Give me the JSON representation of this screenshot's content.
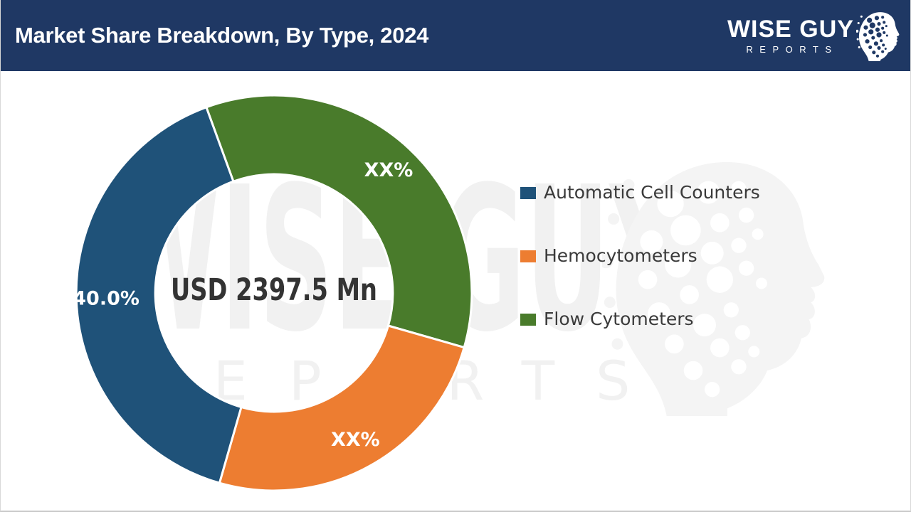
{
  "header": {
    "title": "Market Share Breakdown, By Type, 2024",
    "logo": {
      "line1": "WISE GUY",
      "line2": "REPORTS"
    }
  },
  "watermark": {
    "line1": "WISE GUY",
    "line2": "REPORTS"
  },
  "chart_data": {
    "type": "pie",
    "subtype": "donut",
    "title": "Market Share Breakdown, By Type, 2024",
    "center_label": "USD 2397.5 Mn",
    "unit": "%",
    "start_angle_deg": -20,
    "clockwise": true,
    "inner_radius_ratio": 0.6,
    "draw_order_indices": [
      2,
      1,
      0
    ],
    "segments": [
      {
        "name": "Automatic Cell Counters",
        "value_pct": 40.0,
        "label": "40.0%",
        "value_hidden": false,
        "color": "#1F5279"
      },
      {
        "name": "Hemocytometers",
        "value_pct": 25.0,
        "label": "XX%",
        "value_hidden": true,
        "color": "#ED7D31"
      },
      {
        "name": "Flow Cytometers",
        "value_pct": 35.0,
        "label": "XX%",
        "value_hidden": true,
        "color": "#497B2B"
      }
    ],
    "legend_position": "right"
  },
  "legend": {
    "items": [
      {
        "label": "Automatic Cell Counters",
        "color": "#1F5279"
      },
      {
        "label": "Hemocytometers",
        "color": "#ED7D31"
      },
      {
        "label": "Flow Cytometers",
        "color": "#497B2B"
      }
    ]
  },
  "colors": {
    "header_bg": "#1F3864",
    "center_text": "#333333",
    "legend_text": "#3A3A3A",
    "segment_label_text": "#FFFFFF",
    "watermark": "#F1F1F1",
    "page_border": "#C9C9C9"
  }
}
